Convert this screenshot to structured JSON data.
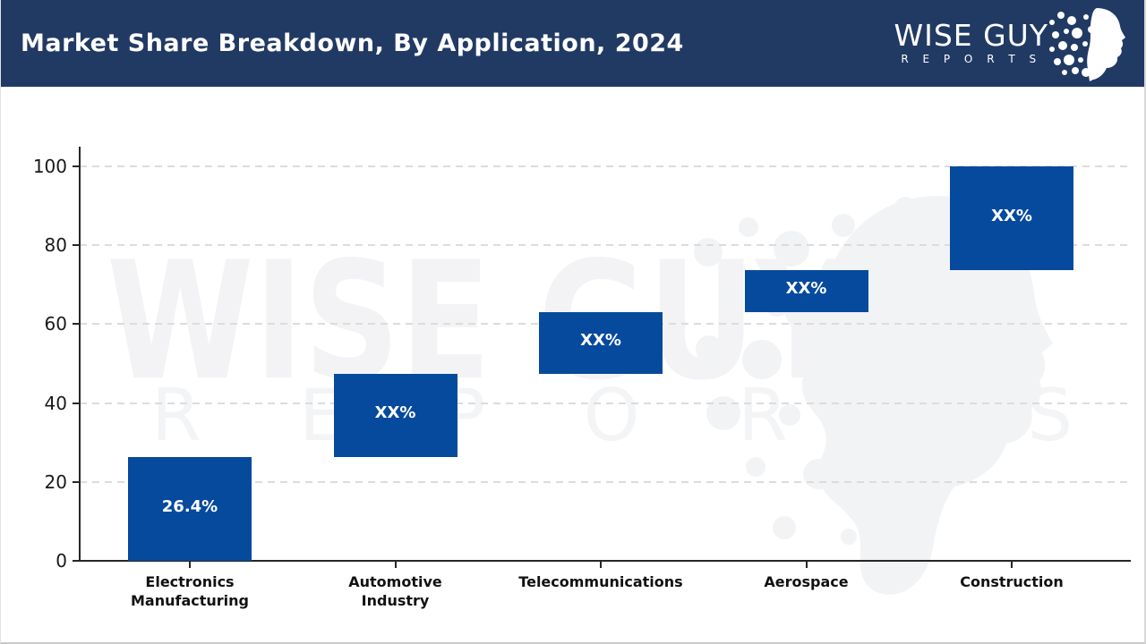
{
  "header": {
    "title": "Market Share Breakdown, By Application, 2024",
    "background_color": "#213a64",
    "logo": {
      "name": "WISE GUY",
      "tagline": "R E P O R T S",
      "icon": "dotted-face-profile-icon"
    }
  },
  "watermark": {
    "name": "WISE GUY",
    "tagline": "R E P O R T S",
    "icon": "dotted-face-profile-watermark",
    "color": "#f3f3f5"
  },
  "chart_data": {
    "type": "bar",
    "subtype": "waterfall (stacked percentage segments)",
    "title": "Market Share Breakdown, By Application, 2024",
    "categories": [
      "Electronics Manufacturing",
      "Automotive Industry",
      "Telecommunications",
      "Aerospace",
      "Construction"
    ],
    "category_label_lines": [
      [
        "Electronics",
        "Manufacturing"
      ],
      [
        "Automotive",
        "Industry"
      ],
      [
        "Telecommunications"
      ],
      [
        "Aerospace"
      ],
      [
        "Construction"
      ]
    ],
    "values": [
      26.4,
      21.0,
      15.7,
      10.7,
      26.2
    ],
    "cumulative_ranges": [
      [
        0,
        26.4
      ],
      [
        26.4,
        47.4
      ],
      [
        47.4,
        63.1
      ],
      [
        63.1,
        73.8
      ],
      [
        73.8,
        100
      ]
    ],
    "bar_labels": [
      "26.4%",
      "XX%",
      "XX%",
      "XX%",
      "XX%"
    ],
    "xlabel": "",
    "ylabel": "",
    "ylim": [
      0,
      105
    ],
    "yticks": [
      0,
      20,
      40,
      60,
      80,
      100
    ],
    "grid": "horizontal dashed gridlines at each ytick",
    "legend": "none",
    "bar_color": "#064a9e",
    "bar_label_color": "#ffffff",
    "axis_color": "#262626",
    "gridline_color": "#dcdcdc"
  }
}
